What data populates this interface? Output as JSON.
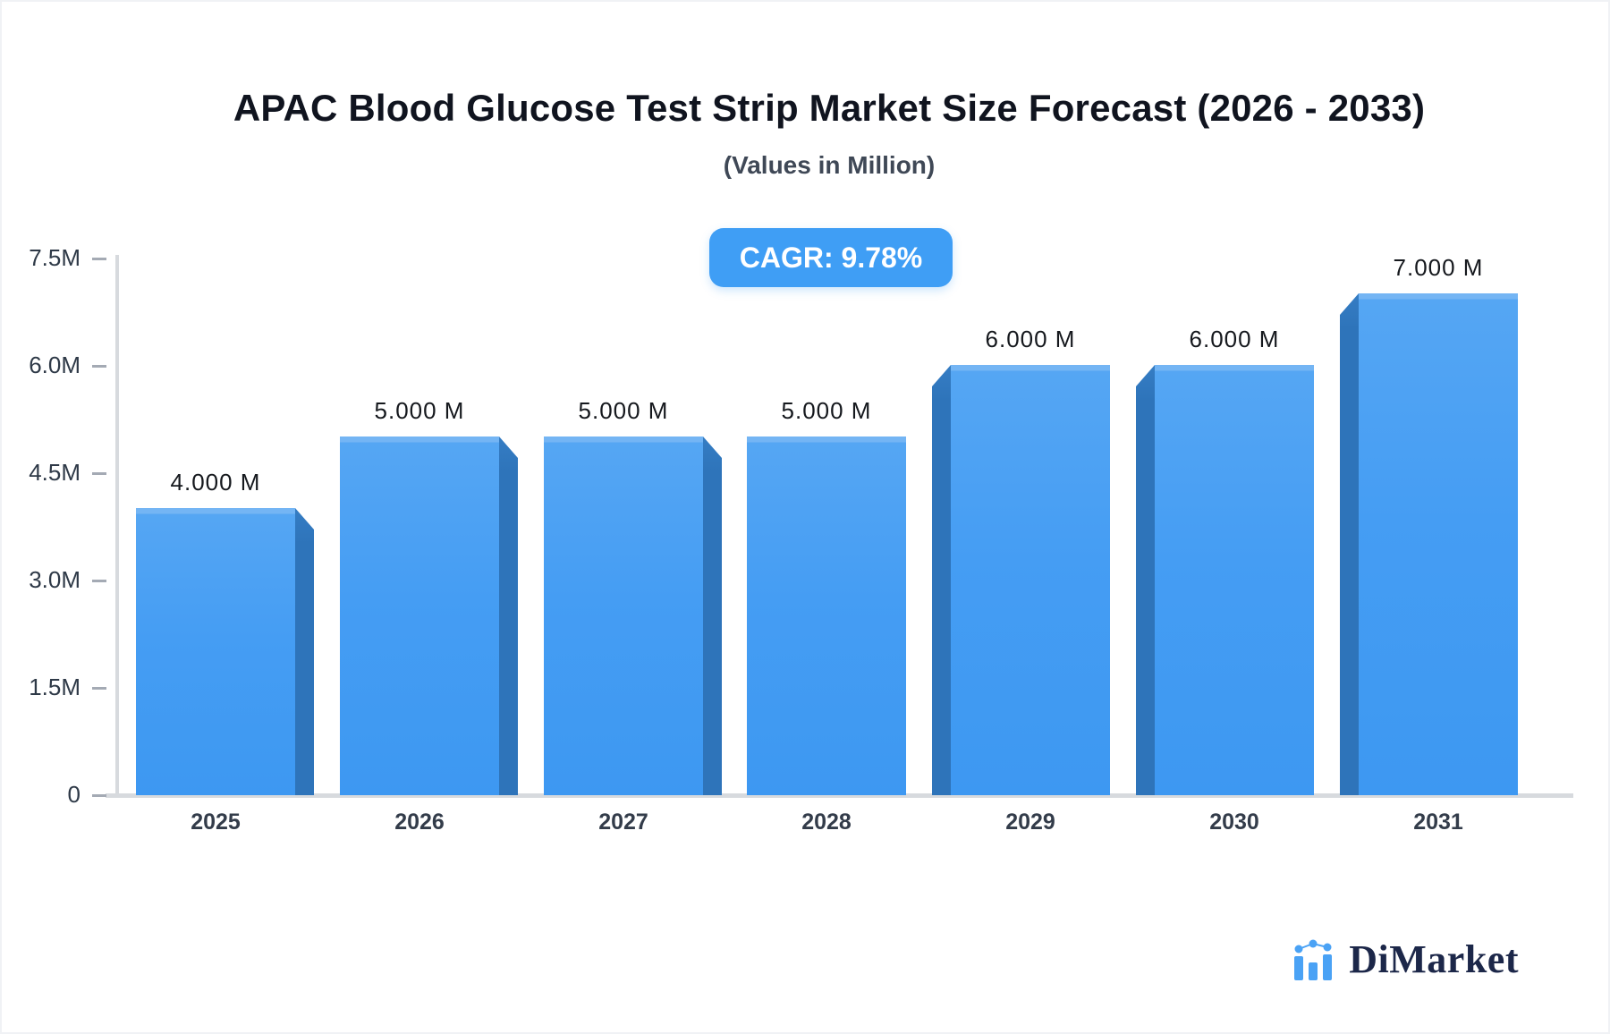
{
  "header": {
    "title": "APAC Blood Glucose Test Strip Market Size Forecast (2026 - 2033)",
    "subtitle": "(Values in Million)",
    "cagr_label": "CAGR: 9.78%"
  },
  "chart_data": {
    "type": "bar",
    "title": "APAC Blood Glucose Test Strip Market Size Forecast (2026 - 2033)",
    "subtitle": "(Values in Million)",
    "annotation": "CAGR: 9.78%",
    "categories": [
      "2025",
      "2026",
      "2027",
      "2028",
      "2029",
      "2030",
      "2031"
    ],
    "values": [
      4.0,
      5.0,
      5.0,
      5.0,
      6.0,
      6.0,
      7.0
    ],
    "value_labels": [
      "4.000 M",
      "5.000 M",
      "5.000 M",
      "5.000 M",
      "6.000 M",
      "6.000 M",
      "7.000 M"
    ],
    "unit": "M",
    "xlabel": "",
    "ylabel": "",
    "ylim": [
      0,
      7.5
    ],
    "yticks": [
      {
        "value": 0,
        "label": "0"
      },
      {
        "value": 1.5,
        "label": "1.5M"
      },
      {
        "value": 3.0,
        "label": "3.0M"
      },
      {
        "value": 4.5,
        "label": "4.5M"
      },
      {
        "value": 6.0,
        "label": "6.0M"
      },
      {
        "value": 7.5,
        "label": "7.5M"
      }
    ],
    "grid": false,
    "legend": false,
    "colors": {
      "bar_face": "#459df3",
      "bar_highlight": "#74b5f4",
      "bar_side": "#2e74ba",
      "badge_bg": "#3f9ef5",
      "axis_line": "#d7dade",
      "tick_text": "#2e3947",
      "title_text": "#10141f"
    }
  },
  "brand": {
    "name": "DiMarket",
    "icon": "mini-bar-chart-icon",
    "accent": "#4aa2f5",
    "text_color": "#1c2749"
  }
}
